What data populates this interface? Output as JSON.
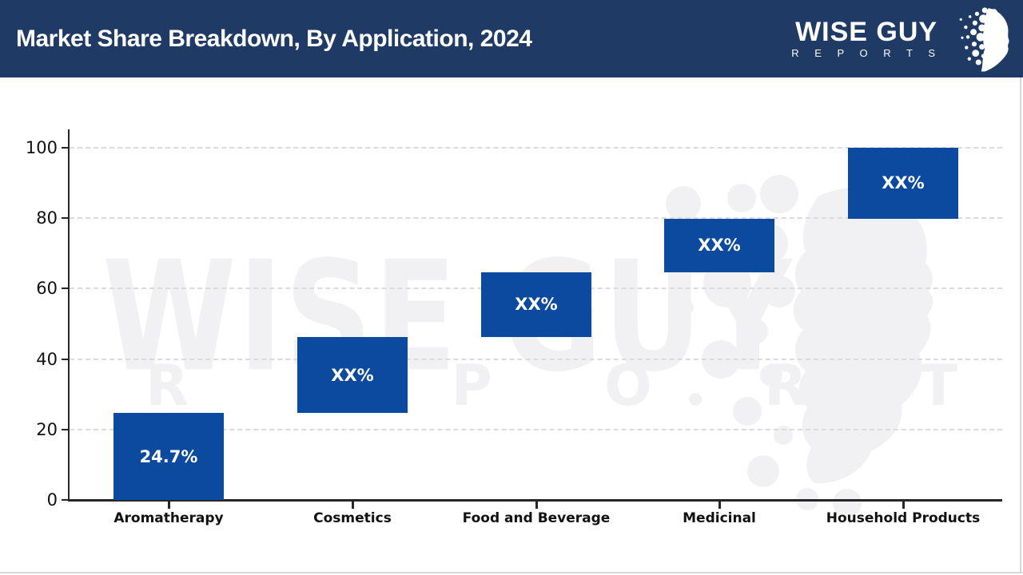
{
  "header": {
    "title": "Market Share Breakdown, By Application, 2024",
    "bg_color": "#203A66",
    "logo": {
      "line1": "WISE GUY",
      "line2": "R E P O R T S"
    }
  },
  "watermark": {
    "line1": "WISE GUY",
    "line2": "R E P O R T S"
  },
  "chart_data": {
    "type": "bar",
    "subtype": "waterfall-floating-bars",
    "title": "Market Share Breakdown, By Application, 2024",
    "xlabel": "",
    "ylabel": "",
    "categories": [
      "Aromatherapy",
      "Cosmetics",
      "Food and Beverage",
      "Medicinal",
      "Household Products"
    ],
    "bars": [
      {
        "category": "Aromatherapy",
        "start": 0,
        "end": 24.7,
        "label": "24.7%"
      },
      {
        "category": "Cosmetics",
        "start": 24.7,
        "end": 46.2,
        "label": "XX%"
      },
      {
        "category": "Food and Beverage",
        "start": 46.2,
        "end": 64.7,
        "label": "XX%"
      },
      {
        "category": "Medicinal",
        "start": 64.7,
        "end": 79.9,
        "label": "XX%"
      },
      {
        "category": "Household Products",
        "start": 79.9,
        "end": 100,
        "label": "XX%"
      }
    ],
    "yticks": [
      0,
      20,
      40,
      60,
      80,
      100
    ],
    "ylim": [
      0,
      105
    ],
    "grid": "horizontal-dashed",
    "legend": "none",
    "bar_color": "#0B4A9F",
    "bar_label_color": "#FFFFFF",
    "axis_color": "#262626",
    "gridline_color": "#DBDBDB"
  }
}
